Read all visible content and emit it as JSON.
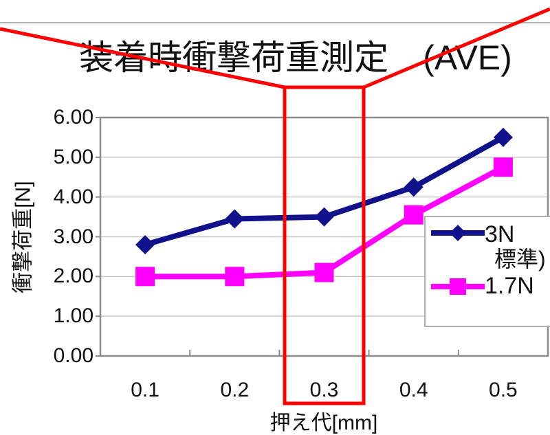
{
  "page": {
    "background": "#ffffff",
    "top_divider_color": "#b1b1b1"
  },
  "chart_data": {
    "type": "line",
    "title": "装着時衝撃荷重測定　(AVE)",
    "categories": [
      "0.1",
      "0.2",
      "0.3",
      "0.4",
      "0.5"
    ],
    "x_values": [
      0.1,
      0.2,
      0.3,
      0.4,
      0.5
    ],
    "series": [
      {
        "name": "3N（標準)",
        "legend_lines": [
          "3N",
          "標準)"
        ],
        "color": "#11118b",
        "marker": "diamond",
        "values": [
          2.8,
          3.45,
          3.5,
          4.25,
          5.5
        ]
      },
      {
        "name": "1.7N",
        "legend_lines": [
          "1.7N"
        ],
        "color": "#ff00ff",
        "marker": "square",
        "values": [
          2.0,
          2.0,
          2.1,
          3.55,
          4.75
        ]
      }
    ],
    "xlabel": "押え代[mm]",
    "ylabel": "衝撃荷重[N]",
    "ylim": [
      0,
      6
    ],
    "ytick_step": 1,
    "ytick_decimals": 2,
    "ytick_labels": [
      "0.00",
      "1.00",
      "2.00",
      "3.00",
      "4.00",
      "5.00",
      "6.00"
    ],
    "grid": "horizontal",
    "gridline_color": "#c9c9c9",
    "axis_color": "#8c8c8c",
    "legend_position": "overlay-right-middle"
  },
  "annotations": {
    "color": "#ff0000",
    "highlight_category": "0.3"
  }
}
